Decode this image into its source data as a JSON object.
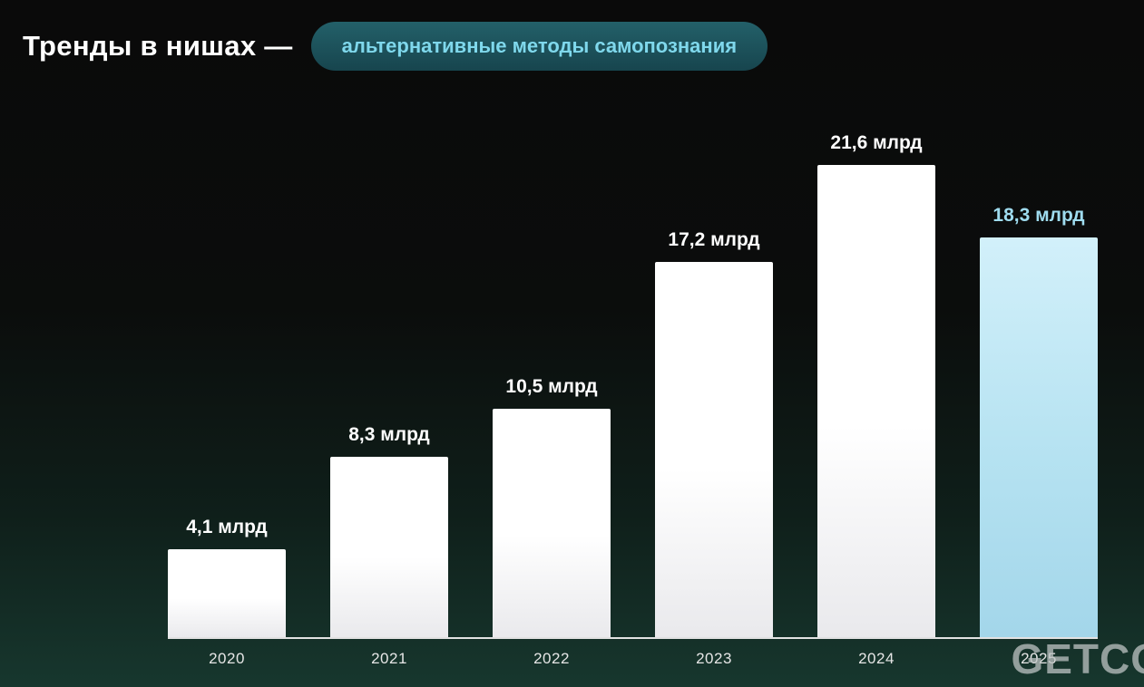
{
  "header": {
    "title": "Тренды в нишах —",
    "badge": "альтернативные методы самопознания"
  },
  "watermark": "GETCO",
  "colors": {
    "background_top": "#0a0a0a",
    "background_bottom": "#17372e",
    "bar_default": "#ffffff",
    "bar_highlight": "#b5e2f1",
    "badge_background": "#1c4f58",
    "badge_text": "#7fd8ec",
    "highlight_label": "#9fdcef",
    "axis": "#e2e2e2"
  },
  "chart_data": {
    "type": "bar",
    "title": "Тренды в нишах — альтернативные методы самопознания",
    "categories": [
      "2020",
      "2021",
      "2022",
      "2023",
      "2024",
      "2025"
    ],
    "values": [
      4.1,
      8.3,
      10.5,
      17.2,
      21.6,
      18.3
    ],
    "value_labels": [
      "4,1 млрд",
      "8,3 млрд",
      "10,5 млрд",
      "17,2 млрд",
      "21,6 млрд",
      "18,3 млрд"
    ],
    "unit": "млрд",
    "highlight_index": 5,
    "ylim": [
      0,
      24
    ],
    "grid": false,
    "legend": false,
    "xlabel": "",
    "ylabel": ""
  }
}
